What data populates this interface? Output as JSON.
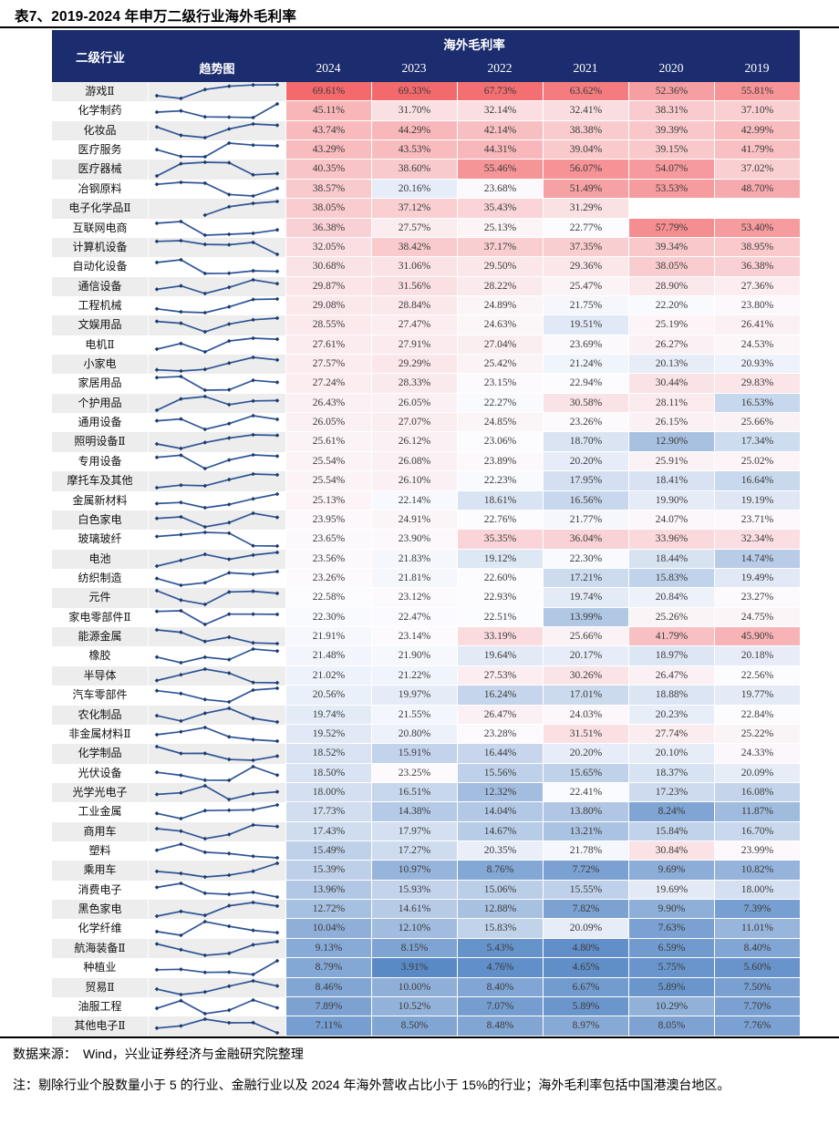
{
  "title": "表7、2019-2024 年申万二级行业海外毛利率",
  "table": {
    "header": {
      "industry": "二级行业",
      "group": "海外毛利率",
      "trend": "趋势图",
      "years": [
        "2024",
        "2023",
        "2022",
        "2021",
        "2020",
        "2019"
      ]
    },
    "rows": [
      {
        "name": "游戏Ⅱ",
        "values": [
          69.61,
          69.33,
          67.73,
          63.62,
          52.36,
          55.81
        ]
      },
      {
        "name": "化学制药",
        "values": [
          45.11,
          31.7,
          32.14,
          32.41,
          38.31,
          37.1
        ]
      },
      {
        "name": "化妆品",
        "values": [
          43.74,
          44.29,
          42.14,
          38.38,
          39.39,
          42.99
        ]
      },
      {
        "name": "医疗服务",
        "values": [
          43.29,
          43.53,
          44.31,
          39.04,
          39.15,
          41.79
        ]
      },
      {
        "name": "医疗器械",
        "values": [
          40.35,
          38.6,
          55.46,
          56.07,
          54.07,
          37.02
        ]
      },
      {
        "name": "冶钢原料",
        "values": [
          38.57,
          20.16,
          23.68,
          51.49,
          53.53,
          48.7
        ]
      },
      {
        "name": "电子化学品Ⅱ",
        "values": [
          38.05,
          37.12,
          35.43,
          31.29,
          null,
          null
        ]
      },
      {
        "name": "互联网电商",
        "values": [
          36.38,
          27.57,
          25.13,
          22.77,
          57.79,
          53.4
        ]
      },
      {
        "name": "计算机设备",
        "values": [
          32.05,
          38.42,
          37.17,
          37.35,
          39.34,
          38.95
        ]
      },
      {
        "name": "自动化设备",
        "values": [
          30.68,
          31.06,
          29.5,
          29.36,
          38.05,
          36.38
        ]
      },
      {
        "name": "通信设备",
        "values": [
          29.87,
          31.56,
          28.22,
          25.47,
          28.9,
          27.36
        ]
      },
      {
        "name": "工程机械",
        "values": [
          29.08,
          28.84,
          24.89,
          21.75,
          22.2,
          23.8
        ]
      },
      {
        "name": "文娱用品",
        "values": [
          28.55,
          27.47,
          24.63,
          19.51,
          25.19,
          26.41
        ]
      },
      {
        "name": "电机Ⅱ",
        "values": [
          27.61,
          27.91,
          27.04,
          23.69,
          26.27,
          24.53
        ]
      },
      {
        "name": "小家电",
        "values": [
          27.57,
          29.29,
          25.42,
          21.24,
          20.13,
          20.93
        ]
      },
      {
        "name": "家居用品",
        "values": [
          27.24,
          28.33,
          23.15,
          22.94,
          30.44,
          29.83
        ]
      },
      {
        "name": "个护用品",
        "values": [
          26.43,
          26.05,
          22.27,
          30.58,
          28.11,
          16.53
        ]
      },
      {
        "name": "通用设备",
        "values": [
          26.05,
          27.07,
          24.85,
          23.26,
          26.15,
          25.66
        ]
      },
      {
        "name": "照明设备Ⅱ",
        "values": [
          25.61,
          26.12,
          23.06,
          18.7,
          12.9,
          17.34
        ]
      },
      {
        "name": "专用设备",
        "values": [
          25.54,
          26.08,
          23.89,
          20.2,
          25.91,
          25.02
        ]
      },
      {
        "name": "摩托车及其他",
        "values": [
          25.54,
          26.1,
          22.23,
          17.95,
          18.41,
          16.64
        ]
      },
      {
        "name": "金属新材料",
        "values": [
          25.13,
          22.14,
          18.61,
          16.56,
          19.9,
          19.19
        ]
      },
      {
        "name": "白色家电",
        "values": [
          23.95,
          24.91,
          22.76,
          21.77,
          24.07,
          23.71
        ]
      },
      {
        "name": "玻璃玻纤",
        "values": [
          23.65,
          23.9,
          35.35,
          36.04,
          33.96,
          32.34
        ]
      },
      {
        "name": "电池",
        "values": [
          23.56,
          21.83,
          19.12,
          22.3,
          18.44,
          14.74
        ]
      },
      {
        "name": "纺织制造",
        "values": [
          23.26,
          21.81,
          22.6,
          17.21,
          15.83,
          19.49
        ]
      },
      {
        "name": "元件",
        "values": [
          22.58,
          23.12,
          22.93,
          19.74,
          20.84,
          23.27
        ]
      },
      {
        "name": "家电零部件Ⅱ",
        "values": [
          22.3,
          22.47,
          22.51,
          13.99,
          25.26,
          24.75
        ]
      },
      {
        "name": "能源金属",
        "values": [
          21.91,
          23.14,
          33.19,
          25.66,
          41.79,
          45.9
        ]
      },
      {
        "name": "橡胶",
        "values": [
          21.48,
          21.9,
          19.64,
          20.17,
          18.97,
          20.18
        ]
      },
      {
        "name": "半导体",
        "values": [
          21.02,
          21.22,
          27.53,
          30.26,
          26.47,
          22.56
        ]
      },
      {
        "name": "汽车零部件",
        "values": [
          20.56,
          19.97,
          16.24,
          17.01,
          18.88,
          19.77
        ]
      },
      {
        "name": "农化制品",
        "values": [
          19.74,
          21.55,
          26.47,
          24.03,
          20.23,
          22.84
        ]
      },
      {
        "name": "非金属材料Ⅱ",
        "values": [
          19.52,
          20.8,
          23.28,
          31.51,
          27.74,
          25.22
        ]
      },
      {
        "name": "化学制品",
        "values": [
          18.52,
          15.91,
          16.44,
          20.2,
          20.1,
          24.33
        ]
      },
      {
        "name": "光伏设备",
        "values": [
          18.5,
          23.25,
          15.56,
          15.65,
          18.37,
          20.09
        ]
      },
      {
        "name": "光学光电子",
        "values": [
          18.0,
          16.51,
          12.32,
          22.41,
          17.23,
          16.08
        ]
      },
      {
        "name": "工业金属",
        "values": [
          17.73,
          14.38,
          14.04,
          13.8,
          8.24,
          11.87
        ]
      },
      {
        "name": "商用车",
        "values": [
          17.43,
          17.97,
          14.67,
          13.21,
          15.84,
          16.7
        ]
      },
      {
        "name": "塑料",
        "values": [
          15.49,
          17.27,
          20.35,
          21.78,
          30.84,
          23.99
        ]
      },
      {
        "name": "乘用车",
        "values": [
          15.39,
          10.97,
          8.76,
          7.72,
          9.69,
          10.82
        ]
      },
      {
        "name": "消费电子",
        "values": [
          13.96,
          15.93,
          15.06,
          15.55,
          19.69,
          18.0
        ]
      },
      {
        "name": "黑色家电",
        "values": [
          12.72,
          14.61,
          12.88,
          7.82,
          9.9,
          7.39
        ]
      },
      {
        "name": "化学纤维",
        "values": [
          10.04,
          12.1,
          15.83,
          20.09,
          7.63,
          11.01
        ]
      },
      {
        "name": "航海装备Ⅱ",
        "values": [
          9.13,
          8.15,
          5.43,
          4.8,
          6.59,
          8.4
        ]
      },
      {
        "name": "种植业",
        "values": [
          8.79,
          3.91,
          4.76,
          4.65,
          5.75,
          5.6
        ]
      },
      {
        "name": "贸易Ⅱ",
        "values": [
          8.46,
          10.0,
          8.4,
          6.67,
          5.89,
          7.5
        ]
      },
      {
        "name": "油服工程",
        "values": [
          7.89,
          10.52,
          7.07,
          5.89,
          10.29,
          7.7
        ]
      },
      {
        "name": "其他电子Ⅱ",
        "values": [
          7.11,
          8.5,
          8.48,
          8.97,
          8.05,
          7.76
        ]
      }
    ]
  },
  "footer": {
    "source": "数据来源：　Wind，兴业证券经济与金融研究院整理",
    "note": "注：剔除行业个股数量小于 5 的行业、金融行业以及 2024 年海外营收占比小于 15%的行业；海外毛利率包括中国港澳台地区。"
  },
  "colors": {
    "header_bg": "#1B2D6E",
    "header_text": "#FFFFFF",
    "heat_max": "#F3696C",
    "heat_mid": "#FCFCFF",
    "heat_min": "#5A8AC6",
    "spark_line": "#2F5597",
    "spark_marker": "#1C3A6B",
    "stripe": "#EDEDED",
    "rule": "#000000",
    "value_text": "#3A3A3A",
    "name_text": "#111111"
  }
}
